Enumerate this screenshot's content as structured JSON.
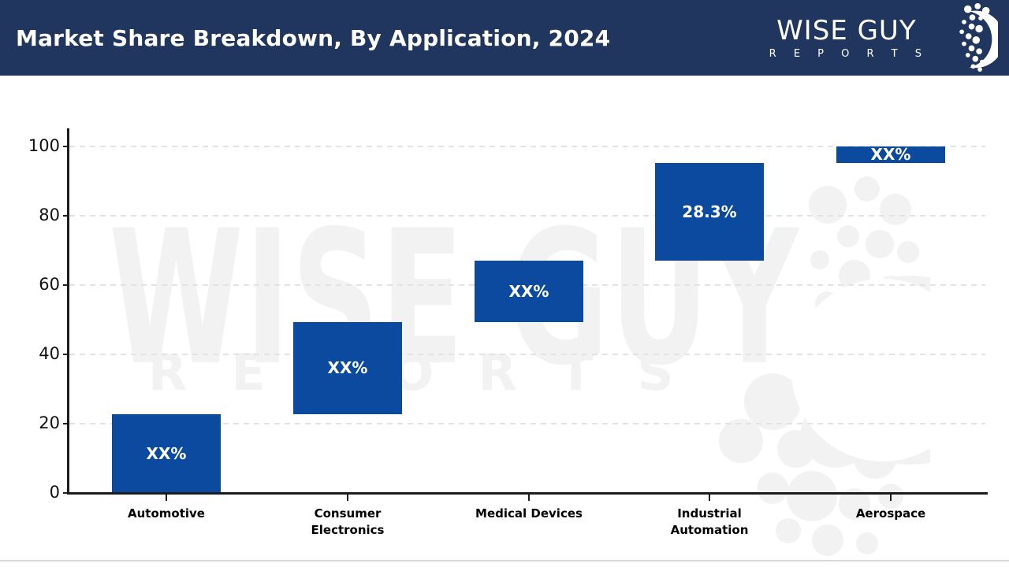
{
  "header": {
    "title": "Market Share Breakdown, By Application, 2024",
    "brand": {
      "name": "WISE GUY",
      "sub": "R E P O R T S"
    }
  },
  "watermark": {
    "line1": "WISE GUY",
    "line2": "REPORTS"
  },
  "chart_data": {
    "type": "bar",
    "subtype": "waterfall",
    "title": "Market Share Breakdown, By Application, 2024",
    "xlabel": "",
    "ylabel": "",
    "categories": [
      "Automotive",
      "Consumer Electronics",
      "Medical Devices",
      "Industrial Automation",
      "Aerospace"
    ],
    "segments": [
      {
        "category": "Automotive",
        "start": 0,
        "end": 22.8,
        "value_label": "XX%"
      },
      {
        "category": "Consumer Electronics",
        "start": 22.8,
        "end": 49.3,
        "value_label": "XX%"
      },
      {
        "category": "Medical Devices",
        "start": 49.3,
        "end": 67.0,
        "value_label": "XX%"
      },
      {
        "category": "Industrial Automation",
        "start": 67.0,
        "end": 95.3,
        "value_label": "28.3%"
      },
      {
        "category": "Aerospace",
        "start": 95.3,
        "end": 100.0,
        "value_label": "XX%"
      }
    ],
    "yticks": [
      0,
      20,
      40,
      60,
      80,
      100
    ],
    "ylim": [
      0,
      105
    ],
    "grid": "horizontal-dashed",
    "legend": "none",
    "bar_color": "#0b4a9e",
    "bar_label_color": "#ffffff"
  },
  "colors": {
    "header_bg": "#21365f",
    "bar": "#0b4a9e",
    "grid": "#e3e3e3",
    "axis": "#1c1c1c",
    "watermark": "#f2f2f2"
  }
}
